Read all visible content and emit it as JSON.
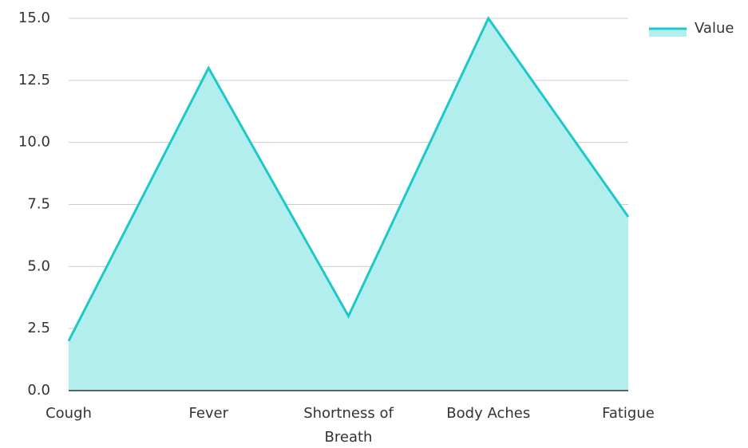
{
  "chart_data": {
    "type": "area",
    "categories": [
      "Cough",
      "Fever",
      "Shortness of Breath",
      "Body Aches",
      "Fatigue"
    ],
    "series": [
      {
        "name": "Value",
        "color": "#1ec8c8",
        "fill": "#b3eeee",
        "values": [
          2,
          13,
          3,
          15,
          7
        ]
      }
    ],
    "ylim": [
      0,
      15
    ],
    "yticks": [
      {
        "value": 0,
        "label": "0.0"
      },
      2.5,
      {
        "value": 5,
        "label": "5.0"
      },
      7.5,
      {
        "value": 10,
        "label": "10.0"
      },
      12.5,
      {
        "value": 15,
        "label": "15.0"
      }
    ],
    "grid": true,
    "legend": "top-right"
  }
}
